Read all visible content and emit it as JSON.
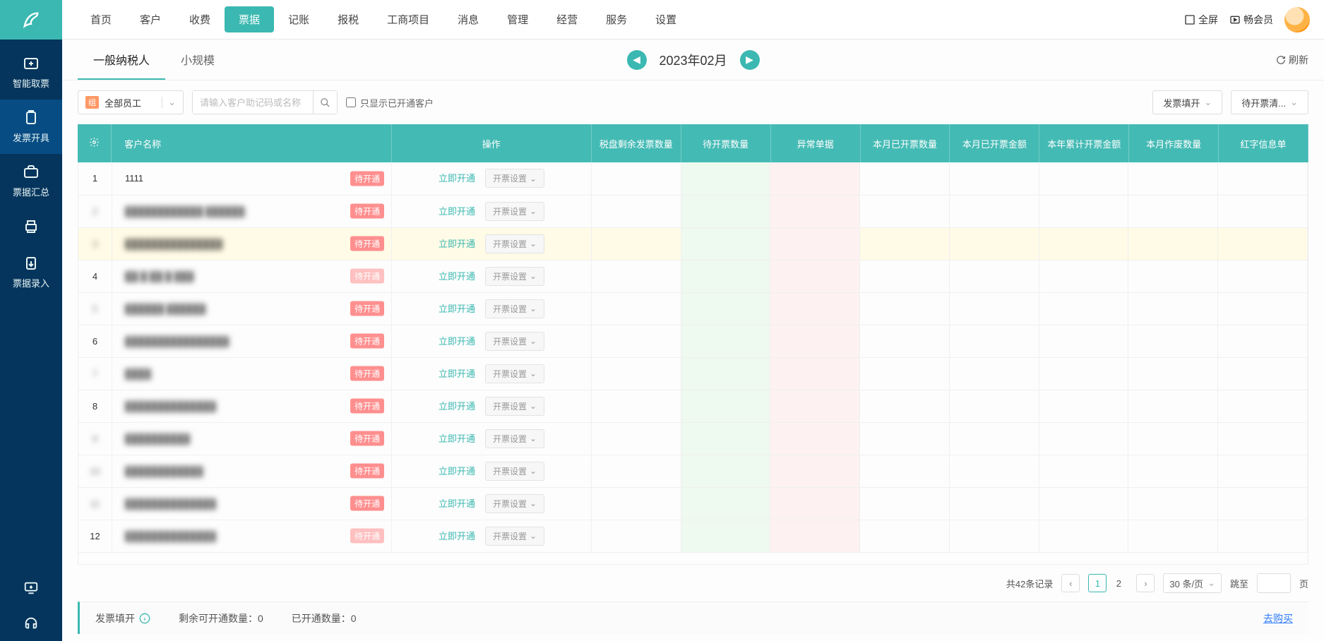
{
  "topnav": {
    "items": [
      "首页",
      "客户",
      "收费",
      "票据",
      "记账",
      "报税",
      "工商项目",
      "消息",
      "管理",
      "经营",
      "服务",
      "设置"
    ],
    "active_index": 3,
    "fullscreen": "全屏",
    "member": "畅会员"
  },
  "sidebar": {
    "items": [
      {
        "label": "智能取票",
        "icon": "plus-card"
      },
      {
        "label": "发票开具",
        "icon": "clipboard"
      },
      {
        "label": "票据汇总",
        "icon": "briefcase"
      },
      {
        "label": "",
        "icon": "printer"
      },
      {
        "label": "票据录入",
        "icon": "clipboard-down"
      }
    ],
    "active_index": 1,
    "bottom_icons": [
      "download-monitor",
      "headset"
    ]
  },
  "tabs": {
    "items": [
      "一般纳税人",
      "小规模"
    ],
    "active_index": 0
  },
  "period": {
    "label": "2023年02月"
  },
  "refresh_label": "刷新",
  "toolbar": {
    "employee_badge": "组",
    "employee_label": "全部员工",
    "search_placeholder": "请输入客户助记码或名称",
    "only_opened_label": "只显示已开通客户",
    "invoice_fill": "发票填开",
    "pending_list": "待开票清..."
  },
  "table": {
    "columns": [
      "",
      "客户名称",
      "操作",
      "税盘剩余发票数量",
      "待开票数量",
      "异常单据",
      "本月已开票数量",
      "本月已开票金额",
      "本年累计开票金额",
      "本月作废数量",
      "红字信息单"
    ],
    "activate_label": "立即开通",
    "settings_label": "开票设置",
    "wait_tag": "待开通",
    "rows": [
      {
        "idx": "1",
        "name": "1111",
        "blur": false,
        "hover": false,
        "tag_faded": false,
        "idx_blur": false
      },
      {
        "idx": "2",
        "name": "████████████  ██████",
        "blur": true,
        "hover": false,
        "tag_faded": false,
        "idx_blur": true
      },
      {
        "idx": "3",
        "name": "███████████████",
        "blur": true,
        "hover": true,
        "tag_faded": false,
        "idx_blur": true
      },
      {
        "idx": "4",
        "name": "██ █ ██ █ ███",
        "blur": true,
        "hover": false,
        "tag_faded": true,
        "idx_blur": false
      },
      {
        "idx": "5",
        "name": "██████  ██████",
        "blur": true,
        "hover": false,
        "tag_faded": false,
        "idx_blur": true
      },
      {
        "idx": "6",
        "name": "████████████████",
        "blur": true,
        "hover": false,
        "tag_faded": false,
        "idx_blur": false
      },
      {
        "idx": "7",
        "name": "████",
        "blur": true,
        "hover": false,
        "tag_faded": false,
        "idx_blur": true
      },
      {
        "idx": "8",
        "name": "██████████████",
        "blur": true,
        "hover": false,
        "tag_faded": false,
        "idx_blur": false
      },
      {
        "idx": "9",
        "name": "██████████",
        "blur": true,
        "hover": false,
        "tag_faded": false,
        "idx_blur": true
      },
      {
        "idx": "10",
        "name": "████████████",
        "blur": true,
        "hover": false,
        "tag_faded": false,
        "idx_blur": true
      },
      {
        "idx": "11",
        "name": "██████████████",
        "blur": true,
        "hover": false,
        "tag_faded": false,
        "idx_blur": true
      },
      {
        "idx": "12",
        "name": "██████████████",
        "blur": true,
        "hover": false,
        "tag_faded": true,
        "idx_blur": false
      }
    ]
  },
  "pagination": {
    "total_label": "共42条记录",
    "pages": [
      "1",
      "2"
    ],
    "active_page": 0,
    "page_size": "30 条/页",
    "jump_label": "跳至",
    "page_suffix": "页"
  },
  "footer": {
    "title": "发票填开",
    "remain_label": "剩余可开通数量：",
    "remain_value": "0",
    "opened_label": "已开通数量：",
    "opened_value": "0",
    "buy_link": "去购买"
  },
  "colors": {
    "teal": "#3bb8b1",
    "sidebar_bg": "#05345c",
    "thead_bg": "#44bab4",
    "cell_green": "#eef9ef",
    "cell_pink": "#fdf1f1",
    "tag_red": "#ff8f8f"
  }
}
